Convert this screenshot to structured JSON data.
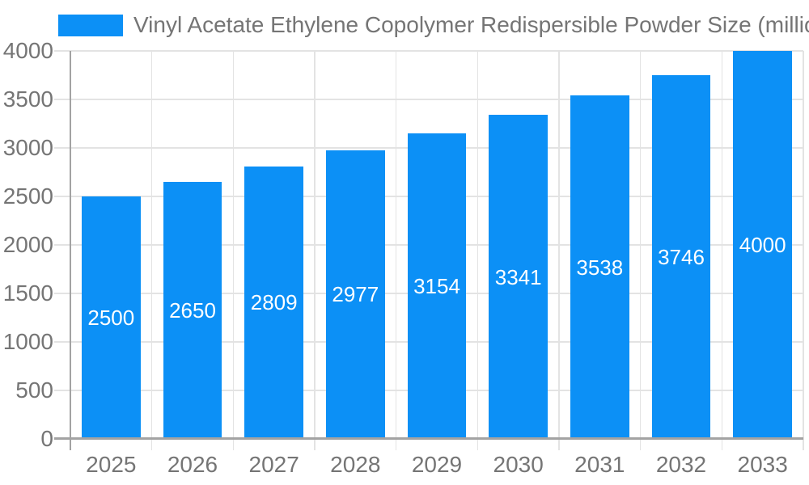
{
  "legend": {
    "items": [
      {
        "label": "Vinyl Acetate Ethylene Copolymer Redispersible Powder Size (million)",
        "color": "#0c90f6"
      }
    ]
  },
  "chart_data": {
    "type": "bar",
    "title": "Vinyl Acetate Ethylene Copolymer Redispersible Powder Size (million)",
    "series_name": "Vinyl Acetate Ethylene Copolymer Redispersible Powder Size (million)",
    "categories": [
      "2025",
      "2026",
      "2027",
      "2028",
      "2029",
      "2030",
      "2031",
      "2032",
      "2033"
    ],
    "values": [
      2500,
      2650,
      2809,
      2977,
      3154,
      3341,
      3538,
      3746,
      4000
    ],
    "xlabel": "",
    "ylabel": "",
    "ylim": [
      0,
      4000
    ],
    "yticks": [
      0,
      500,
      1000,
      1500,
      2000,
      2500,
      3000,
      3500,
      4000
    ],
    "grid": true,
    "legend_position": "top-left",
    "bar_color": "#0c90f6",
    "value_label_color": "#ffffff"
  },
  "colors": {
    "bar": "#0c90f6",
    "grid": "#e3e3e3",
    "axis": "#a3a3a3",
    "text": "#757575",
    "background": "#ffffff"
  }
}
